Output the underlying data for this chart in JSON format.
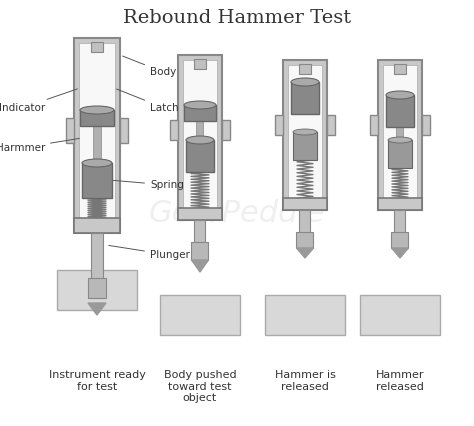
{
  "title": "Rebound Hammer Test",
  "title_fontsize": 14,
  "title_font": "serif",
  "bg_color": "#ffffff",
  "body_color": "#c8c8c8",
  "body_edge": "#888888",
  "inner_color": "#f0f0f0",
  "hammer_color": "#b0b0b0",
  "hammer_dark": "#888888",
  "plunger_color": "#c0c0c0",
  "spring_color": "#777777",
  "surface_color": "#d8d8d8",
  "surface_edge": "#aaaaaa",
  "text_color": "#333333",
  "label_fontsize": 7.5,
  "caption_fontsize": 8,
  "captions": [
    "Instrument ready\nfor test",
    "Body pushed\ntoward test\nobject",
    "Hammer is\nreleased",
    "Hammer\nreleased"
  ],
  "watermark": "GearPeddle",
  "watermark_color": "#cccccc",
  "watermark_alpha": 0.3,
  "watermark_fontsize": 22
}
